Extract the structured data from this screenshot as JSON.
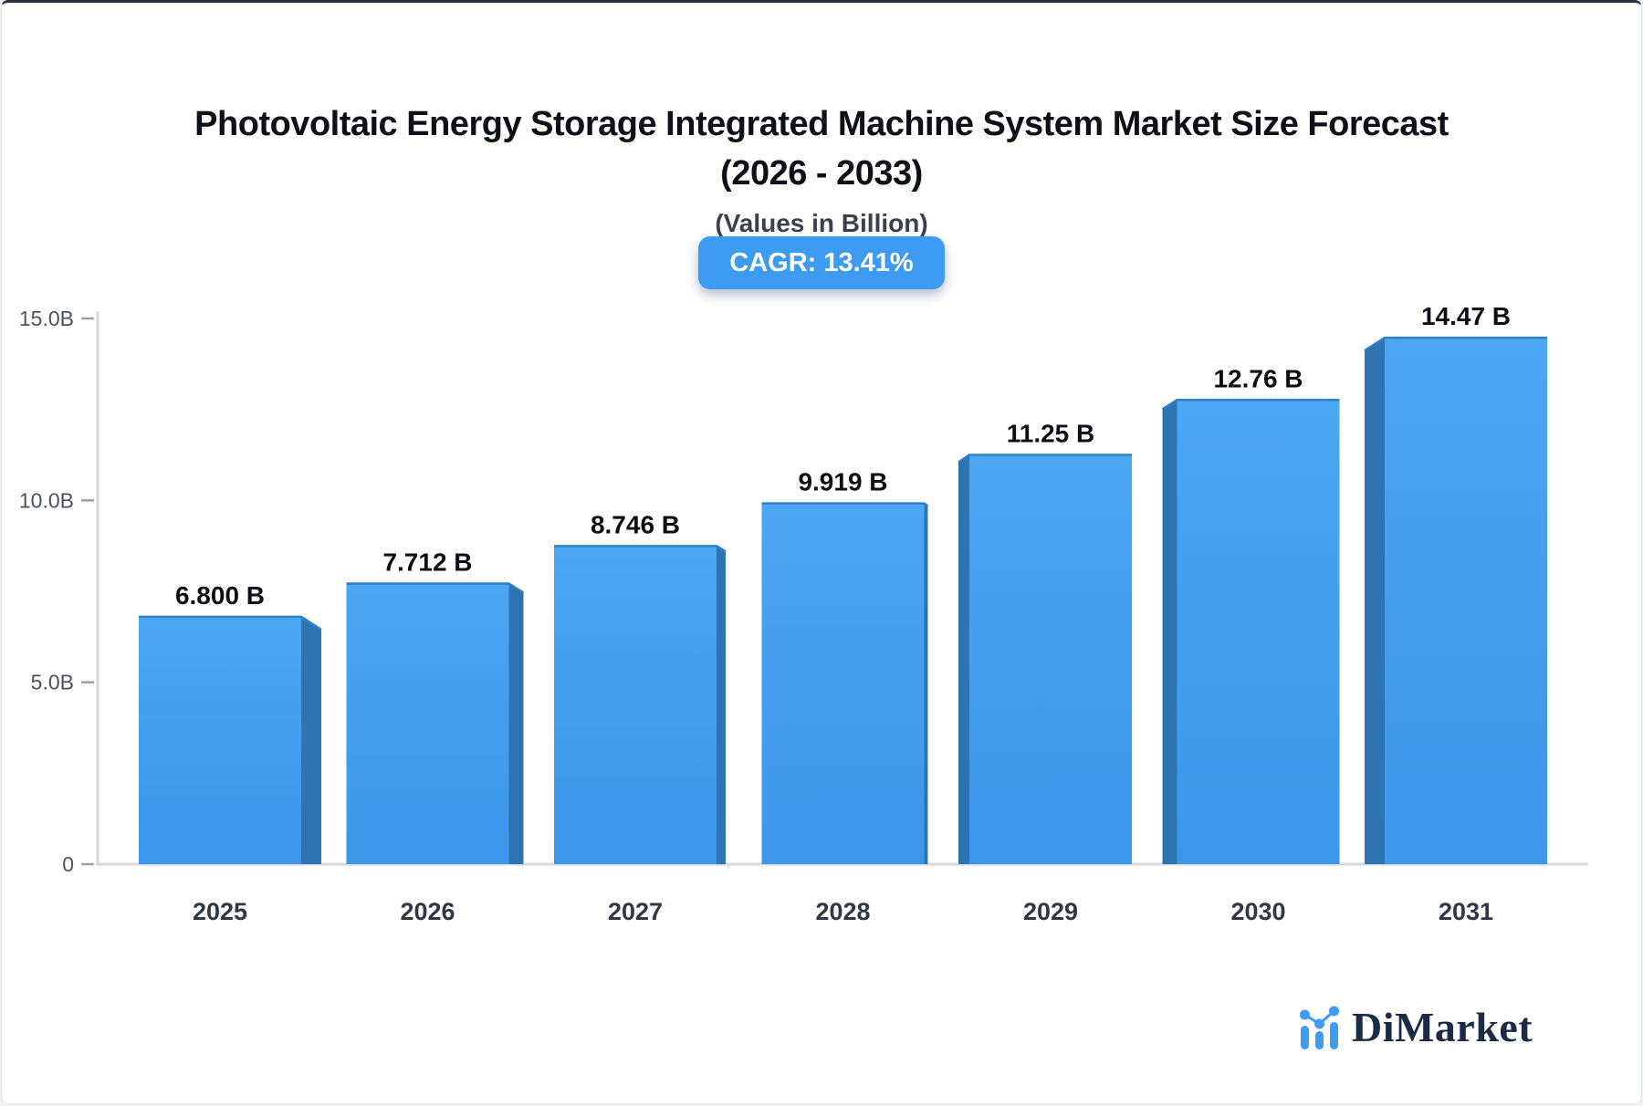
{
  "header": {
    "title_line1": "Photovoltaic Energy Storage Integrated Machine System Market Size Forecast",
    "title_line2": "(2026 - 2033)",
    "subtitle": "(Values in Billion)",
    "cagr_badge": "CAGR: 13.41%"
  },
  "chart_data": {
    "type": "bar",
    "title": "Photovoltaic Energy Storage Integrated Machine System Market Size Forecast (2026 - 2033)",
    "subtitle": "(Values in Billion)",
    "cagr": "13.41%",
    "categories": [
      "2025",
      "2026",
      "2027",
      "2028",
      "2029",
      "2030",
      "2031"
    ],
    "values": [
      6.8,
      7.712,
      8.746,
      9.919,
      11.25,
      12.76,
      14.47
    ],
    "value_labels": [
      "6.800 B",
      "7.712 B",
      "8.746 B",
      "9.919 B",
      "11.25 B",
      "12.76 B",
      "14.47 B"
    ],
    "y_ticks": [
      {
        "value": 15,
        "label": "15.0B"
      },
      {
        "value": 10,
        "label": "10.0B"
      },
      {
        "value": 5,
        "label": "5.0B"
      },
      {
        "value": 0,
        "label": "0"
      }
    ],
    "ylim": [
      0,
      15
    ],
    "xlabel": "",
    "ylabel": "",
    "grid": false,
    "legend": false,
    "colors": {
      "bar_front_top": "#4da6f1",
      "bar_front_bottom": "#3c96ea",
      "bar_side": "#2e74b3",
      "bar_edge": "#2e80c8",
      "axis": "#d8dade",
      "tick": "#9aa1ac",
      "tick_label": "#4a5361",
      "category_label": "#2f3847",
      "value_label": "#0c0f15"
    }
  },
  "branding": {
    "logo_text": "DiMarket",
    "logo_color": "#1b2a45",
    "logo_icon_color": "#3f9bf4"
  }
}
